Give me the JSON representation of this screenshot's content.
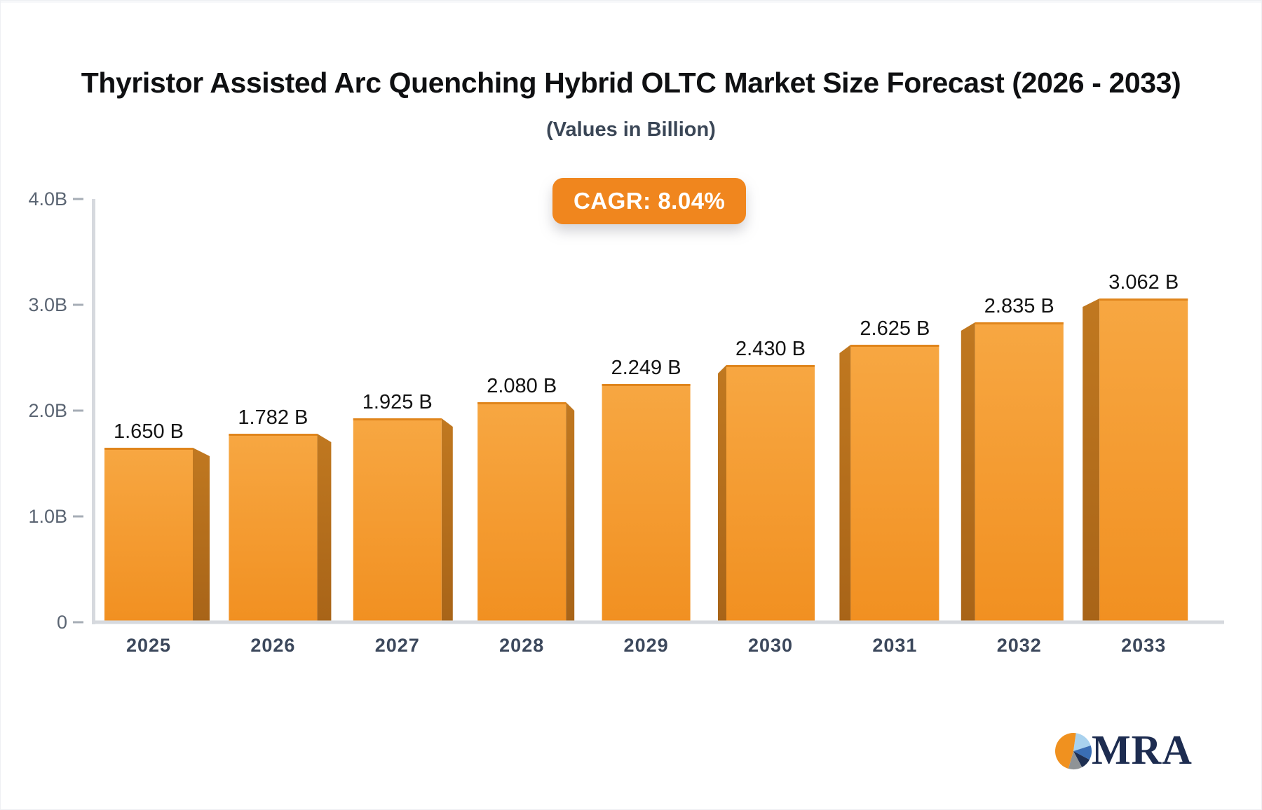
{
  "chart_data": {
    "type": "bar",
    "title": "Thyristor Assisted Arc Quenching Hybrid OLTC Market Size Forecast (2026 - 2033)",
    "subtitle": "(Values in Billion)",
    "badge_label": "CAGR: 8.04%",
    "categories": [
      "2025",
      "2026",
      "2027",
      "2028",
      "2029",
      "2030",
      "2031",
      "2032",
      "2033"
    ],
    "values": [
      1.65,
      1.782,
      1.925,
      2.08,
      2.249,
      2.43,
      2.625,
      2.835,
      3.062
    ],
    "value_labels": [
      "1.650 B",
      "1.782 B",
      "1.925 B",
      "2.080 B",
      "2.249 B",
      "2.430 B",
      "2.625 B",
      "2.835 B",
      "3.062 B"
    ],
    "unit": "Billion",
    "ylim": [
      0,
      4
    ],
    "y_ticks": [
      {
        "value": 0,
        "label": "0"
      },
      {
        "value": 1,
        "label": "1.0B"
      },
      {
        "value": 2,
        "label": "2.0B"
      },
      {
        "value": 3,
        "label": "3.0B"
      },
      {
        "value": 4,
        "label": "4.0B"
      }
    ],
    "grid": false,
    "legend": "none",
    "colors": {
      "bar_front_top": "#f7a742",
      "bar_front_bottom": "#f19021",
      "bar_top_edge": "#e0851c",
      "bar_side_top": "#c07820",
      "bar_side_bottom": "#a86418",
      "axis_line": "#d6d9de",
      "tick_dash": "#a6adb6",
      "y_label": "#5a6472",
      "x_label": "#3c485c",
      "value_label": "#141414",
      "badge_bg": "#f0861e",
      "badge_text": "#ffffff",
      "title": "#0f1012",
      "subtitle": "#3a4656"
    }
  },
  "logo": {
    "text": "MRA",
    "text_color": "#1d2c50",
    "pie_slices": [
      {
        "name": "light-blue",
        "color": "#a9d2ee",
        "start": 8,
        "end": 72
      },
      {
        "name": "medium-blue",
        "color": "#3a6eb4",
        "start": 72,
        "end": 118
      },
      {
        "name": "navy",
        "color": "#1e2f52",
        "start": 118,
        "end": 152
      },
      {
        "name": "gray",
        "color": "#8f9396",
        "start": 152,
        "end": 196
      },
      {
        "name": "orange",
        "color": "#f0911f",
        "start": 196,
        "end": 368
      }
    ]
  }
}
